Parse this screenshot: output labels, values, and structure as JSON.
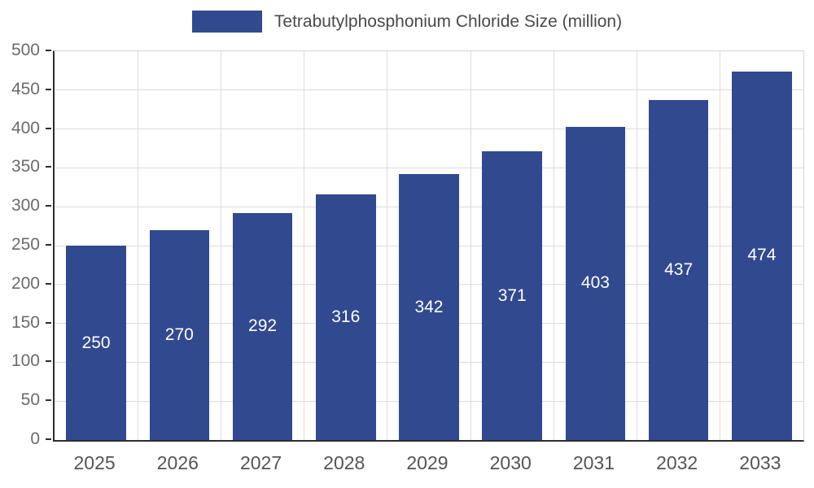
{
  "chart_data": {
    "type": "bar",
    "title": "Tetrabutylphosphonium Chloride Size (million)",
    "categories": [
      "2025",
      "2026",
      "2027",
      "2028",
      "2029",
      "2030",
      "2031",
      "2032",
      "2033"
    ],
    "values": [
      250,
      270,
      292,
      316,
      342,
      371,
      403,
      437,
      474
    ],
    "xlabel": "",
    "ylabel": "",
    "ylim": [
      0,
      500
    ],
    "ytick_step": 50,
    "grid": true,
    "legend_position": "top",
    "bar_color": "#31498F",
    "value_label_color": "#ffffff"
  }
}
